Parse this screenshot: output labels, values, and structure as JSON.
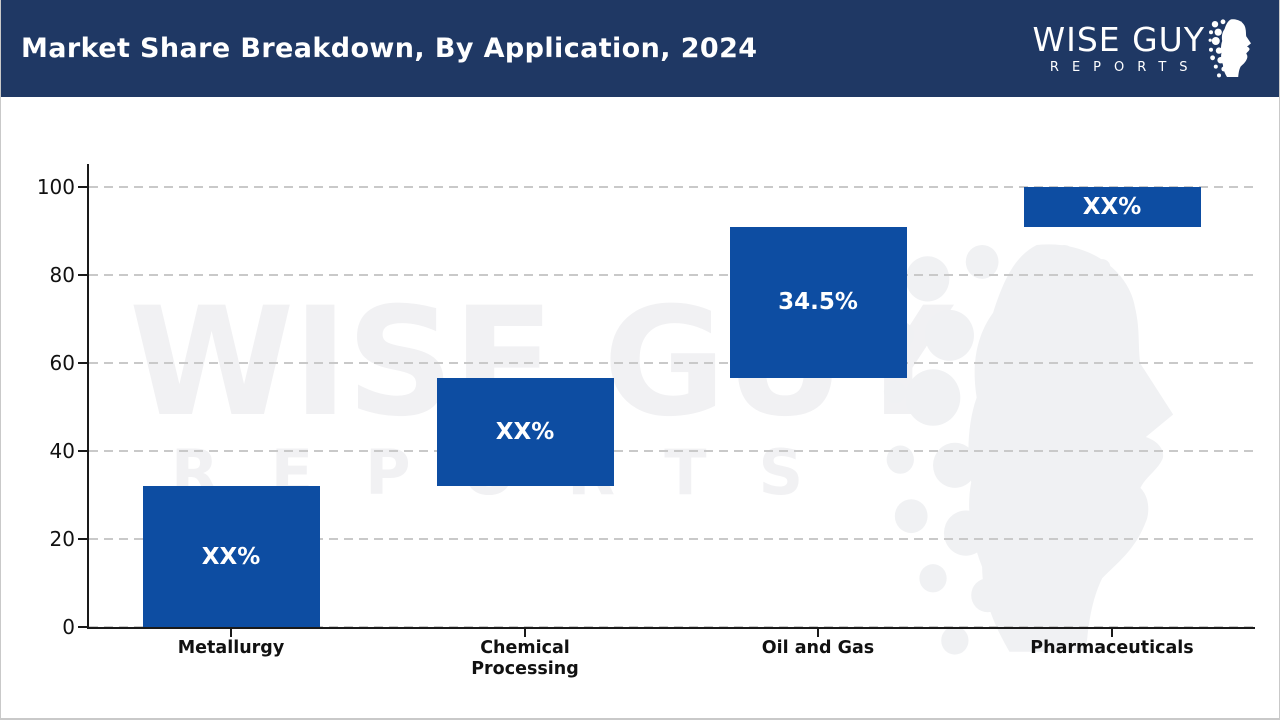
{
  "header": {
    "title": "Market Share Breakdown, By Application, 2024",
    "bg_color": "#1f3864",
    "logo": {
      "line1": "WISE GUY",
      "line2": "REPORTS"
    }
  },
  "watermark": {
    "line1": "WISE GUY",
    "line2": "REPORTS"
  },
  "chart_data": {
    "type": "bar",
    "subtype": "waterfall",
    "title": "Market Share Breakdown, By Application, 2024",
    "xlabel": "",
    "ylabel": "",
    "categories": [
      "Metallurgy",
      "Chemical Processing",
      "Oil and Gas",
      "Pharmaceuticals"
    ],
    "segments": [
      {
        "category": "Metallurgy",
        "start": 0,
        "end": 32,
        "label": "XX%"
      },
      {
        "category": "Chemical Processing",
        "start": 32,
        "end": 56.5,
        "label": "XX%"
      },
      {
        "category": "Oil and Gas",
        "start": 56.5,
        "end": 91,
        "label": "34.5%"
      },
      {
        "category": "Pharmaceuticals",
        "start": 91,
        "end": 100,
        "label": "XX%"
      }
    ],
    "yticks": [
      0,
      20,
      40,
      60,
      80,
      100
    ],
    "ylim": [
      0,
      105
    ],
    "grid": "horizontal dashed",
    "legend": "none",
    "bar_color": "#0d4da2",
    "grid_color": "#c9c9c9",
    "axis_color": "#1a1a1a"
  }
}
